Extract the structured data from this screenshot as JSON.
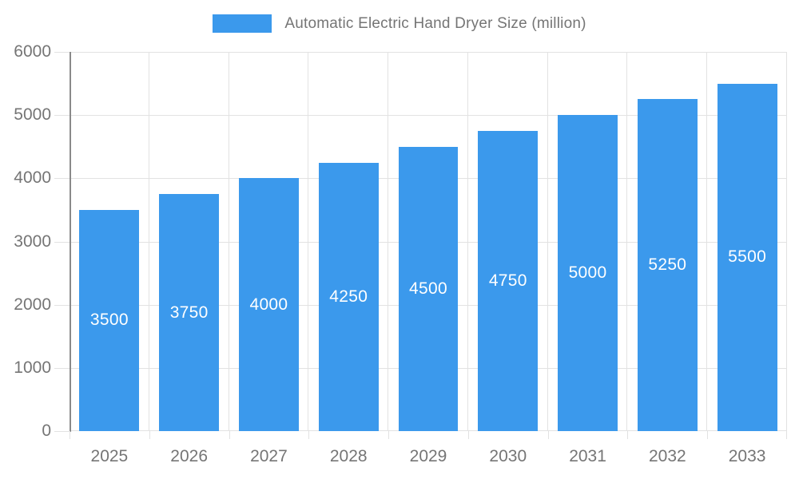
{
  "legend": {
    "label": "Automatic Electric Hand Dryer Size (million)"
  },
  "colors": {
    "bar": "#3b99ec",
    "bar_label": "#ffffff",
    "axis_text": "#757575",
    "gridline": "#e2e2e2",
    "axis_line": "#8a8a8a"
  },
  "chart_data": {
    "type": "bar",
    "title": "Automatic Electric Hand Dryer Size (million)",
    "categories": [
      "2025",
      "2026",
      "2027",
      "2028",
      "2029",
      "2030",
      "2031",
      "2032",
      "2033"
    ],
    "values": [
      3500,
      3750,
      4000,
      4250,
      4500,
      4750,
      5000,
      5250,
      5500
    ],
    "xlabel": "",
    "ylabel": "",
    "ylim": [
      0,
      6000
    ],
    "ytick_step": 1000,
    "ytick_labels": [
      "0",
      "1000",
      "2000",
      "3000",
      "4000",
      "5000",
      "6000"
    ],
    "grid": true,
    "legend_position": "top",
    "bar_width_fraction": 0.75,
    "value_label_position": "middle-of-bar"
  }
}
